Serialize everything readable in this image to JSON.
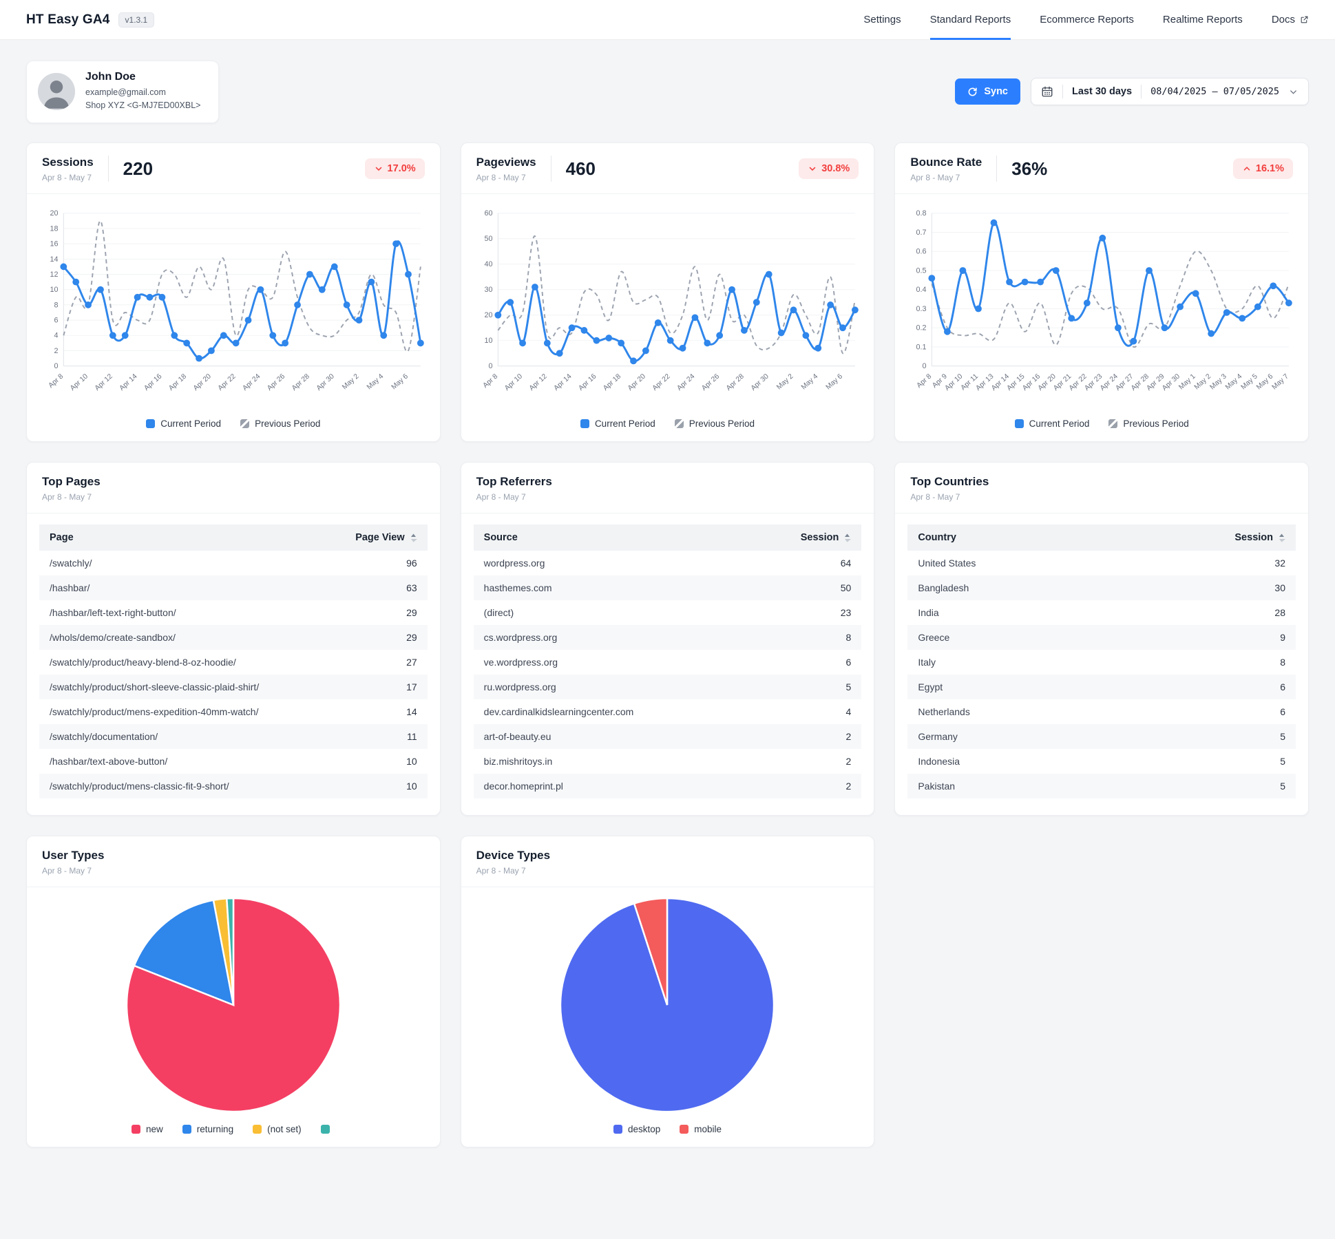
{
  "header": {
    "title": "HT Easy GA4",
    "version": "v1.3.1",
    "nav": [
      {
        "label": "Settings",
        "active": false,
        "external": false
      },
      {
        "label": "Standard Reports",
        "active": true,
        "external": false
      },
      {
        "label": "Ecommerce Reports",
        "active": false,
        "external": false
      },
      {
        "label": "Realtime Reports",
        "active": false,
        "external": false
      },
      {
        "label": "Docs",
        "active": false,
        "external": true
      }
    ]
  },
  "account": {
    "name": "John Doe",
    "email": "example@gmail.com",
    "property": "Shop XYZ <G-MJ7ED00XBL>"
  },
  "controls": {
    "sync_label": "Sync",
    "range_label": "Last 30 days",
    "range_dates": "08/04/2025 — 07/05/2025"
  },
  "legend": {
    "current": "Current Period",
    "previous": "Previous Period"
  },
  "colors": {
    "accent": "#2b7fff",
    "line_current": "#2f86eb",
    "line_previous": "#9ca3af",
    "badge_bg": "#fdeaea",
    "badge_text": "#f23e3e"
  },
  "chart_data": [
    {
      "id": "sessions",
      "type": "line",
      "title": "Sessions",
      "subtitle": "Apr 8 - May 7",
      "value": "220",
      "change": "17.0%",
      "change_direction": "down",
      "ylim": [
        0,
        20
      ],
      "ytick": 2,
      "tick_every": 2,
      "grid": true,
      "legend_position": "bottom",
      "x": [
        "Apr 8",
        "Apr 9",
        "Apr 10",
        "Apr 11",
        "Apr 12",
        "Apr 13",
        "Apr 14",
        "Apr 15",
        "Apr 16",
        "Apr 17",
        "Apr 18",
        "Apr 19",
        "Apr 20",
        "Apr 21",
        "Apr 22",
        "Apr 23",
        "Apr 24",
        "Apr 25",
        "Apr 26",
        "Apr 27",
        "Apr 28",
        "Apr 29",
        "Apr 30",
        "May 1",
        "May 2",
        "May 3",
        "May 4",
        "May 5",
        "May 6",
        "May 7"
      ],
      "series": [
        {
          "name": "Current Period",
          "values": [
            13,
            11,
            8,
            10,
            4,
            4,
            9,
            9,
            9,
            4,
            3,
            1,
            2,
            4,
            3,
            6,
            10,
            4,
            3,
            8,
            12,
            10,
            13,
            8,
            6,
            11,
            4,
            16,
            12,
            3
          ]
        },
        {
          "name": "Previous Period",
          "values": [
            4,
            9,
            8,
            19,
            6,
            7,
            6,
            6,
            12,
            12,
            9,
            13,
            10,
            14,
            4,
            10,
            10,
            9,
            15,
            9,
            5,
            4,
            4,
            6,
            7,
            12,
            8,
            7,
            2,
            13
          ]
        }
      ]
    },
    {
      "id": "pageviews",
      "type": "line",
      "title": "Pageviews",
      "subtitle": "Apr 8 - May 7",
      "value": "460",
      "change": "30.8%",
      "change_direction": "down",
      "ylim": [
        0,
        60
      ],
      "ytick": 10,
      "tick_every": 2,
      "grid": true,
      "legend_position": "bottom",
      "x": [
        "Apr 8",
        "Apr 9",
        "Apr 10",
        "Apr 11",
        "Apr 12",
        "Apr 13",
        "Apr 14",
        "Apr 15",
        "Apr 16",
        "Apr 17",
        "Apr 18",
        "Apr 19",
        "Apr 20",
        "Apr 21",
        "Apr 22",
        "Apr 23",
        "Apr 24",
        "Apr 25",
        "Apr 26",
        "Apr 27",
        "Apr 28",
        "Apr 29",
        "Apr 30",
        "May 1",
        "May 2",
        "May 3",
        "May 4",
        "May 5",
        "May 6",
        "May 7"
      ],
      "series": [
        {
          "name": "Current Period",
          "values": [
            20,
            25,
            9,
            31,
            9,
            5,
            15,
            14,
            10,
            11,
            9,
            2,
            6,
            17,
            10,
            7,
            19,
            9,
            12,
            30,
            14,
            25,
            36,
            13,
            22,
            12,
            7,
            24,
            15,
            22
          ]
        },
        {
          "name": "Previous Period",
          "values": [
            14,
            20,
            21,
            51,
            13,
            15,
            13,
            29,
            28,
            18,
            37,
            25,
            26,
            27,
            13,
            20,
            39,
            18,
            36,
            18,
            20,
            8,
            7,
            13,
            28,
            20,
            13,
            35,
            5,
            26
          ]
        }
      ]
    },
    {
      "id": "bounce-rate",
      "type": "line",
      "title": "Bounce Rate",
      "subtitle": "Apr 8 - May 7",
      "value": "36%",
      "change": "16.1%",
      "change_direction": "up",
      "ylim": [
        0,
        0.8
      ],
      "ytick": 0.1,
      "tick_every": 1,
      "grid": true,
      "legend_position": "bottom",
      "x": [
        "Apr 8",
        "Apr 9",
        "Apr 10",
        "Apr 11",
        "Apr 13",
        "Apr 14",
        "Apr 15",
        "Apr 16",
        "Apr 20",
        "Apr 21",
        "Apr 22",
        "Apr 23",
        "Apr 24",
        "Apr 27",
        "Apr 28",
        "Apr 29",
        "Apr 30",
        "May 1",
        "May 2",
        "May 3",
        "May 4",
        "May 5",
        "May 6",
        "May 7"
      ],
      "series": [
        {
          "name": "Current Period",
          "values": [
            0.46,
            0.18,
            0.5,
            0.3,
            0.75,
            0.44,
            0.44,
            0.44,
            0.5,
            0.25,
            0.33,
            0.67,
            0.2,
            0.13,
            0.5,
            0.2,
            0.31,
            0.38,
            0.17,
            0.28,
            0.25,
            0.31,
            0.42,
            0.33
          ]
        },
        {
          "name": "Previous Period",
          "values": [
            0.43,
            0.2,
            0.16,
            0.17,
            0.14,
            0.33,
            0.18,
            0.33,
            0.11,
            0.38,
            0.41,
            0.3,
            0.3,
            0.1,
            0.22,
            0.2,
            0.42,
            0.6,
            0.5,
            0.3,
            0.3,
            0.42,
            0.25,
            0.43
          ]
        }
      ]
    },
    {
      "id": "user-types",
      "type": "pie",
      "title": "User Types",
      "subtitle": "Apr 8 - May 7",
      "legend_position": "bottom",
      "slices": [
        {
          "label": "new",
          "value": 81,
          "color": "#f43f63"
        },
        {
          "label": "returning",
          "value": 16,
          "color": "#2f86eb"
        },
        {
          "label": "(not set)",
          "value": 2,
          "color": "#f9be34"
        },
        {
          "label": "",
          "value": 1,
          "color": "#3bb3ab"
        }
      ]
    },
    {
      "id": "device-types",
      "type": "pie",
      "title": "Device Types",
      "subtitle": "Apr 8 - May 7",
      "legend_position": "bottom",
      "slices": [
        {
          "label": "desktop",
          "value": 95,
          "color": "#4f6af0"
        },
        {
          "label": "mobile",
          "value": 5,
          "color": "#f45b5b"
        }
      ]
    }
  ],
  "tables": [
    {
      "id": "top-pages",
      "title": "Top Pages",
      "subtitle": "Apr 8 - May 7",
      "columns": [
        "Page",
        "Page View"
      ],
      "rows": [
        [
          "/swatchly/",
          "96"
        ],
        [
          "/hashbar/",
          "63"
        ],
        [
          "/hashbar/left-text-right-button/",
          "29"
        ],
        [
          "/whols/demo/create-sandbox/",
          "29"
        ],
        [
          "/swatchly/product/heavy-blend-8-oz-hoodie/",
          "27"
        ],
        [
          "/swatchly/product/short-sleeve-classic-plaid-shirt/",
          "17"
        ],
        [
          "/swatchly/product/mens-expedition-40mm-watch/",
          "14"
        ],
        [
          "/swatchly/documentation/",
          "11"
        ],
        [
          "/hashbar/text-above-button/",
          "10"
        ],
        [
          "/swatchly/product/mens-classic-fit-9-short/",
          "10"
        ]
      ]
    },
    {
      "id": "top-referrers",
      "title": "Top Referrers",
      "subtitle": "Apr 8 - May 7",
      "columns": [
        "Source",
        "Session"
      ],
      "rows": [
        [
          "wordpress.org",
          "64"
        ],
        [
          "hasthemes.com",
          "50"
        ],
        [
          "(direct)",
          "23"
        ],
        [
          "cs.wordpress.org",
          "8"
        ],
        [
          "ve.wordpress.org",
          "6"
        ],
        [
          "ru.wordpress.org",
          "5"
        ],
        [
          "dev.cardinalkidslearningcenter.com",
          "4"
        ],
        [
          "art-of-beauty.eu",
          "2"
        ],
        [
          "biz.mishritoys.in",
          "2"
        ],
        [
          "decor.homeprint.pl",
          "2"
        ]
      ]
    },
    {
      "id": "top-countries",
      "title": "Top Countries",
      "subtitle": "Apr 8 - May 7",
      "columns": [
        "Country",
        "Session"
      ],
      "rows": [
        [
          "United States",
          "32"
        ],
        [
          "Bangladesh",
          "30"
        ],
        [
          "India",
          "28"
        ],
        [
          "Greece",
          "9"
        ],
        [
          "Italy",
          "8"
        ],
        [
          "Egypt",
          "6"
        ],
        [
          "Netherlands",
          "6"
        ],
        [
          "Germany",
          "5"
        ],
        [
          "Indonesia",
          "5"
        ],
        [
          "Pakistan",
          "5"
        ]
      ]
    }
  ]
}
